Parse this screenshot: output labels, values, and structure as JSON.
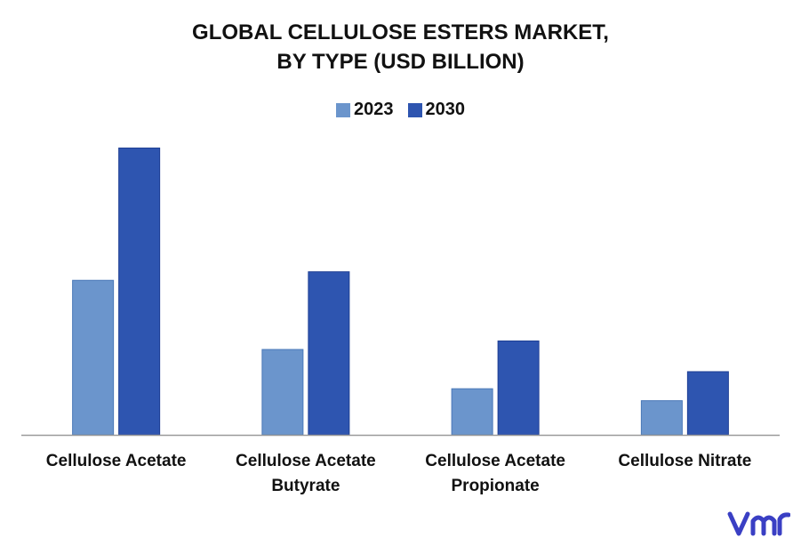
{
  "chart_data": {
    "type": "bar",
    "title_lines": [
      "GLOBAL CELLULOSE ESTERS MARKET,",
      "BY TYPE (USD BILLION)"
    ],
    "categories": [
      [
        "Cellulose Acetate"
      ],
      [
        "Cellulose Acetate",
        "Butyrate"
      ],
      [
        "Cellulose Acetate",
        "Propionate"
      ],
      [
        "Cellulose Nitrate"
      ]
    ],
    "series": [
      {
        "name": "2023",
        "color": "#6b95cc",
        "values": [
          181,
          100,
          54,
          40
        ]
      },
      {
        "name": "2030",
        "color": "#2e55b0",
        "values": [
          336,
          191,
          110,
          74
        ]
      }
    ],
    "ylim": [
      0,
      350
    ],
    "grid": false,
    "legend_position": "top-center"
  },
  "branding": {
    "logo_icon": "vmr-logo-icon",
    "logo_color": "#3a3fc4"
  }
}
